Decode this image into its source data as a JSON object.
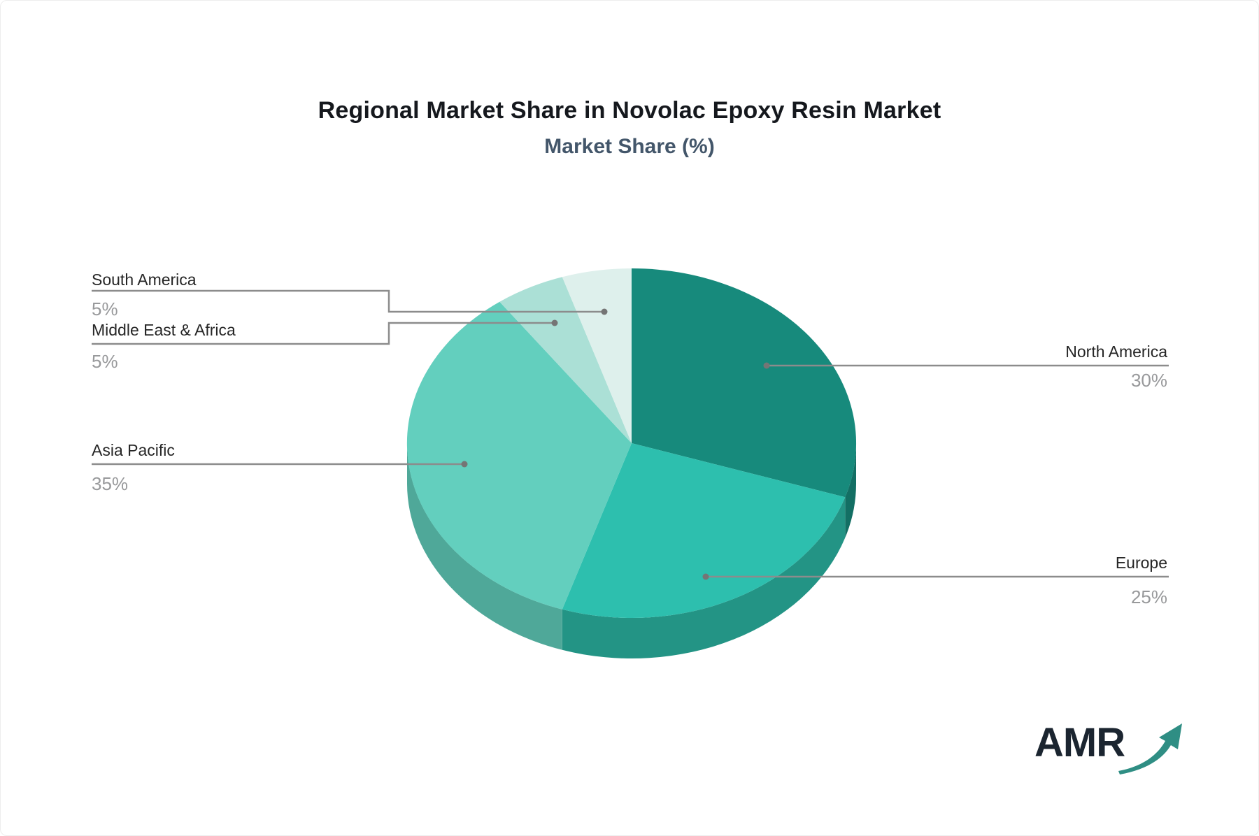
{
  "chart_data": {
    "type": "pie",
    "title": "Regional Market Share in Novolac Epoxy Resin Market",
    "subtitle": "Market Share (%)",
    "unit": "%",
    "direction": "clockwise",
    "start_angle_deg": 0,
    "legend": "none",
    "effect": "3d",
    "slices": [
      {
        "label": "North America",
        "value": 30,
        "pct_label": "30%",
        "color": "#178a7c",
        "side_color": "#136f64",
        "callout_side": "right"
      },
      {
        "label": "Europe",
        "value": 25,
        "pct_label": "25%",
        "color": "#2dbfae",
        "side_color": "#239485",
        "callout_side": "right"
      },
      {
        "label": "Asia Pacific",
        "value": 35,
        "pct_label": "35%",
        "color": "#63cfbe",
        "side_color": "#4fa899",
        "callout_side": "left"
      },
      {
        "label": "Middle East & Africa",
        "value": 5,
        "pct_label": "5%",
        "color": "#abe0d6",
        "side_color": "#8fc4ba",
        "callout_side": "left"
      },
      {
        "label": "South America",
        "value": 5,
        "pct_label": "5%",
        "color": "#def0ec",
        "side_color": "#c2dcd6",
        "callout_side": "left"
      }
    ],
    "label_color": "#262626",
    "value_color": "#98999b",
    "leader_line_color": "#8c8c8c",
    "dot_color": "#757575"
  },
  "logo": {
    "text": "AMR",
    "color": "#1b2530",
    "arrow_color": "#2f8e84"
  }
}
